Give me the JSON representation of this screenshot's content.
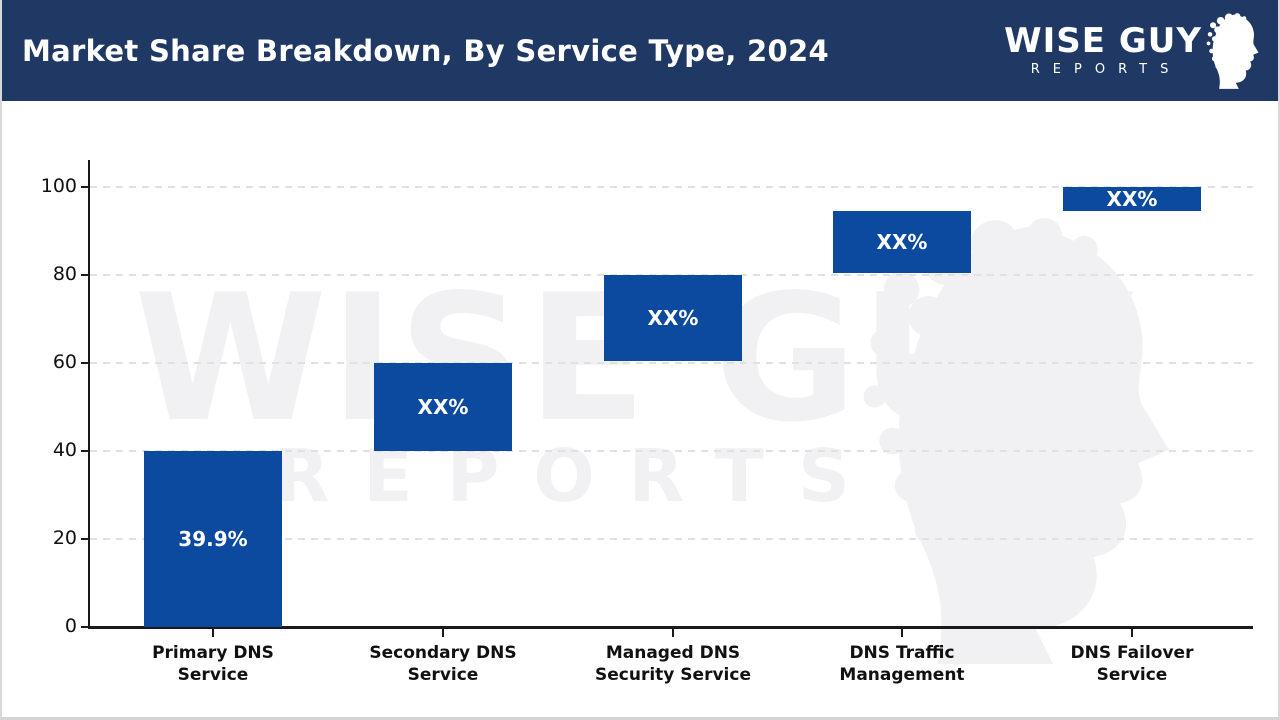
{
  "header": {
    "title": "Market Share Breakdown, By Service Type, 2024",
    "logo": {
      "name": "WISE GUY",
      "tagline": "REPORTS"
    }
  },
  "watermark": {
    "name": "WISE GUY",
    "tagline": "REPORTS"
  },
  "chart_data": {
    "type": "bar",
    "subtype": "waterfall",
    "title": "Market Share Breakdown, By Service Type, 2024",
    "categories": [
      "Primary DNS\nService",
      "Secondary DNS\nService",
      "Managed DNS\nSecurity Service",
      "DNS Traffic\nManagement",
      "DNS Failover\nService"
    ],
    "bars": [
      {
        "category": "Primary DNS Service",
        "label": "39.9%",
        "start": 0,
        "end": 39.9
      },
      {
        "category": "Secondary DNS Service",
        "label": "XX%",
        "start": 40,
        "end": 60
      },
      {
        "category": "Managed DNS Security Service",
        "label": "XX%",
        "start": 60.5,
        "end": 80
      },
      {
        "category": "DNS Traffic Management",
        "label": "XX%",
        "start": 80.5,
        "end": 94.5
      },
      {
        "category": "DNS Failover Service",
        "label": "XX%",
        "start": 94.6,
        "end": 100
      }
    ],
    "ylim": [
      0,
      100
    ],
    "yticks": [
      0,
      20,
      40,
      60,
      80,
      100
    ],
    "xlabel": "",
    "ylabel": "",
    "legend": null,
    "grid": "horizontal-dashed",
    "bar_color": "#0c4aa0",
    "bar_label_color": "#ffffff",
    "axis_color": "#1a1a1a",
    "gridline_color": "#e1e1e1"
  },
  "colors": {
    "header_bg": "#203864",
    "watermark": "#f1f1f4",
    "page_bg": "#ffffff"
  }
}
